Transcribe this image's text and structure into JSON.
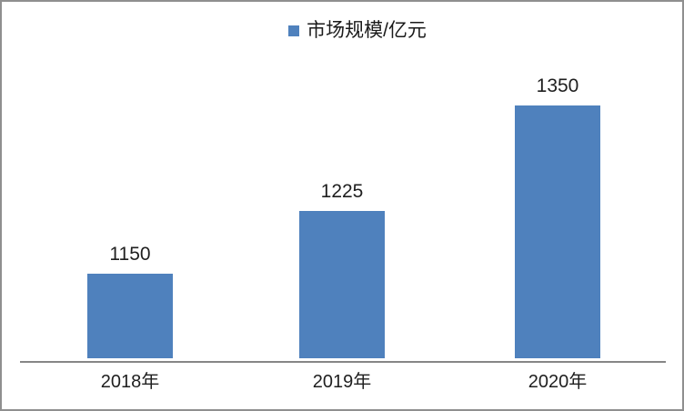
{
  "chart_data": {
    "type": "bar",
    "title": "",
    "xlabel": "",
    "ylabel": "",
    "legend_label": "市场规模/亿元",
    "legend_position": "top",
    "categories": [
      "2018年",
      "2019年",
      "2020年"
    ],
    "values": [
      1150,
      1225,
      1350
    ],
    "data_labels": [
      "1150",
      "1225",
      "1350"
    ],
    "ylim": [
      1050,
      1400
    ],
    "grid": false,
    "y_axis_visible": false,
    "bar_color": "#4f81bd",
    "axis_line_color": "#868686",
    "text_color": "#1f1f1f",
    "border_color": "#8f8f8f",
    "background_color": "#ffffff"
  }
}
